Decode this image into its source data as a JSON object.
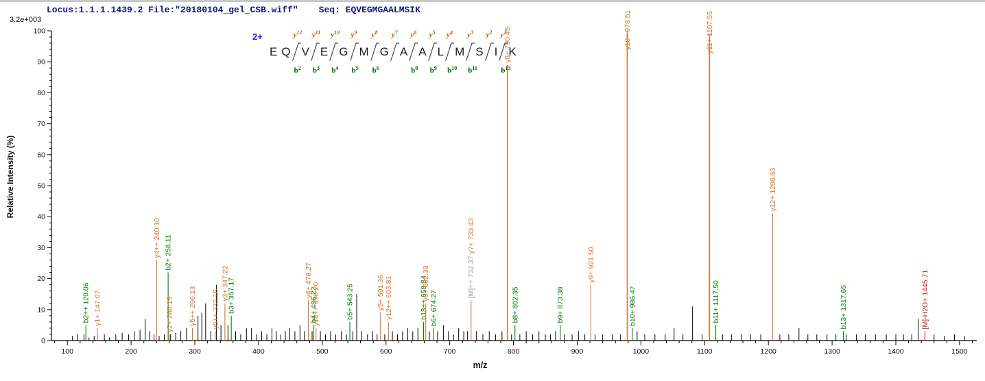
{
  "header": {
    "locus_file": "Locus:1.1.1.1439.2 File:\"20180104_gel_CSB.wiff\"",
    "seq": "Seq: EQVEGMGAALMSIK",
    "max_intensity": "3.2e+003"
  },
  "peptide": {
    "charge": "2+",
    "residues": [
      "E",
      "Q",
      "V",
      "E",
      "G",
      "M",
      "G",
      "A",
      "A",
      "L",
      "M",
      "S",
      "I",
      "K"
    ],
    "cleavages": [
      {
        "after": 1,
        "y": "y12",
        "b": "b2"
      },
      {
        "after": 2,
        "y": "y11",
        "b": "b3"
      },
      {
        "after": 3,
        "y": "y10",
        "b": "b4"
      },
      {
        "after": 4,
        "y": "y9",
        "b": "b5"
      },
      {
        "after": 5,
        "y": "y8",
        "b": "b6"
      },
      {
        "after": 6,
        "y": "y7",
        "b": null
      },
      {
        "after": 7,
        "y": "y6",
        "b": "b8"
      },
      {
        "after": 8,
        "y": "y5",
        "b": "b9"
      },
      {
        "after": 9,
        "y": "y4",
        "b": "b10"
      },
      {
        "after": 10,
        "y": "y3",
        "b": "b11"
      },
      {
        "after": 11,
        "y": "y2",
        "b": null
      },
      {
        "after": 12,
        "y": "y1",
        "b": "b13"
      }
    ]
  },
  "chart_data": {
    "type": "bar",
    "subtype": "ms2-fragment-spectrum",
    "xlabel": "m/z",
    "ylabel": "Relative Intensity (%)",
    "xlim": [
      75,
      1527
    ],
    "ylim": [
      0,
      100
    ],
    "x_ticks": [
      100,
      200,
      300,
      400,
      500,
      600,
      700,
      800,
      900,
      1000,
      1100,
      1200,
      1300,
      1400,
      1500
    ],
    "x_minor_step": 20,
    "y_ticks": [
      0,
      10,
      20,
      30,
      40,
      50,
      60,
      70,
      80,
      90,
      100
    ],
    "y_minor_step": 2,
    "colors": {
      "y_ion": "#d9732f",
      "b_ion": "#008000",
      "precursor": "#9a9a9a",
      "neutral_loss": "#c01818",
      "noise": "#000000",
      "axis": "#000000"
    },
    "annotated_peaks": [
      {
        "label": "b2++ 129.06",
        "mz": 129.06,
        "intensity": 5,
        "type": "b"
      },
      {
        "label": "y1+ 147.07",
        "mz": 147.07,
        "intensity": 4,
        "type": "y"
      },
      {
        "label": "y4++ 240.10",
        "mz": 240.1,
        "intensity": 26,
        "type": "y"
      },
      {
        "label": "b2+ 258.11",
        "mz": 258.11,
        "intensity": 22,
        "type": "b"
      },
      {
        "label": "y2+ 260.19",
        "mz": 260.19,
        "intensity": 2,
        "type": "y"
      },
      {
        "label": "y5++ 296.13",
        "mz": 296.13,
        "intensity": 4,
        "type": "y"
      },
      {
        "label": "y6++ 332.16",
        "mz": 332.16,
        "intensity": 3,
        "type": "y"
      },
      {
        "label": "y3+ 347.22",
        "mz": 347.22,
        "intensity": 12,
        "type": "y"
      },
      {
        "label": "b3+ 357.17",
        "mz": 357.17,
        "intensity": 8,
        "type": "b"
      },
      {
        "label": "y4+ 478.27",
        "mz": 478.27,
        "intensity": 13,
        "type": "y"
      },
      {
        "label": "b4+ 486.22",
        "mz": 486.22,
        "intensity": 5,
        "type": "b"
      },
      {
        "label": "y10++ 490.20",
        "mz": 490.2,
        "intensity": 4,
        "type": "y"
      },
      {
        "label": "b5+ 543.25",
        "mz": 543.25,
        "intensity": 6,
        "type": "b"
      },
      {
        "label": "y5+ 591.36",
        "mz": 591.36,
        "intensity": 9,
        "type": "y"
      },
      {
        "label": "y12++ 603.81",
        "mz": 603.81,
        "intensity": 6,
        "type": "y"
      },
      {
        "label": "b13++ 658.84",
        "mz": 658.84,
        "intensity": 6,
        "type": "b"
      },
      {
        "label": "y6+ 662.39",
        "mz": 662.39,
        "intensity": 12,
        "type": "y"
      },
      {
        "label": "b6+ 674.27",
        "mz": 674.27,
        "intensity": 4,
        "type": "b"
      },
      {
        "label": "y7+ 733.43",
        "prefix": "[M]++ 732.37",
        "prefix_type": "precursor",
        "mz": 733.43,
        "intensity": 13,
        "type": "y"
      },
      {
        "label": "y8+ 790.45",
        "mz": 790.45,
        "intensity": 89,
        "type": "y"
      },
      {
        "label": "b8+ 802.35",
        "mz": 802.35,
        "intensity": 5,
        "type": "b"
      },
      {
        "label": "b9+ 873.38",
        "mz": 873.38,
        "intensity": 5,
        "type": "b"
      },
      {
        "label": "y9+ 921.50",
        "mz": 921.5,
        "intensity": 18,
        "type": "y"
      },
      {
        "label": "y10+ 978.51",
        "mz": 978.51,
        "intensity": 100,
        "type": "y"
      },
      {
        "label": "b10+ 986.47",
        "mz": 986.47,
        "intensity": 4,
        "type": "b"
      },
      {
        "label": "y11+ 1107.55",
        "mz": 1107.55,
        "intensity": 99,
        "type": "y"
      },
      {
        "label": "b11+ 1117.50",
        "mz": 1117.5,
        "intensity": 5,
        "type": "b"
      },
      {
        "label": "y12+ 1206.63",
        "mz": 1206.63,
        "intensity": 41,
        "type": "y"
      },
      {
        "label": "b13+ 1317.65",
        "mz": 1317.65,
        "intensity": 3,
        "type": "b"
      },
      {
        "label": "[M]-H2O+ 1445.71",
        "mz": 1445.71,
        "intensity": 3,
        "type": "mh2o"
      }
    ],
    "noise_peaks": [
      [
        108,
        1.5
      ],
      [
        116,
        2
      ],
      [
        126,
        2
      ],
      [
        134,
        1
      ],
      [
        142,
        1.5
      ],
      [
        158,
        2
      ],
      [
        166,
        1
      ],
      [
        176,
        2
      ],
      [
        186,
        2.5
      ],
      [
        196,
        2
      ],
      [
        205,
        3
      ],
      [
        214,
        3.5
      ],
      [
        222,
        7
      ],
      [
        229,
        3
      ],
      [
        236,
        2
      ],
      [
        244,
        1.5
      ],
      [
        252,
        2
      ],
      [
        262,
        2
      ],
      [
        270,
        2.5
      ],
      [
        278,
        3
      ],
      [
        287,
        4
      ],
      [
        305,
        8
      ],
      [
        311,
        9
      ],
      [
        317,
        12
      ],
      [
        325,
        3
      ],
      [
        334,
        18
      ],
      [
        341,
        5
      ],
      [
        352,
        5
      ],
      [
        364,
        3
      ],
      [
        372,
        2
      ],
      [
        381,
        4
      ],
      [
        389,
        4
      ],
      [
        397,
        2
      ],
      [
        405,
        3
      ],
      [
        413,
        2
      ],
      [
        421,
        4
      ],
      [
        428,
        3
      ],
      [
        435,
        2
      ],
      [
        442,
        3
      ],
      [
        449,
        4
      ],
      [
        457,
        3
      ],
      [
        465,
        5
      ],
      [
        472,
        3
      ],
      [
        484,
        3
      ],
      [
        497,
        3
      ],
      [
        505,
        2
      ],
      [
        513,
        3
      ],
      [
        521,
        2
      ],
      [
        530,
        3
      ],
      [
        538,
        2
      ],
      [
        548,
        3
      ],
      [
        554,
        15
      ],
      [
        562,
        3
      ],
      [
        571,
        2
      ],
      [
        579,
        3
      ],
      [
        586,
        2
      ],
      [
        598,
        2
      ],
      [
        610,
        3
      ],
      [
        618,
        2
      ],
      [
        626,
        3
      ],
      [
        634,
        4
      ],
      [
        642,
        3
      ],
      [
        650,
        4
      ],
      [
        668,
        3
      ],
      [
        681,
        3
      ],
      [
        690,
        5
      ],
      [
        698,
        3
      ],
      [
        706,
        2
      ],
      [
        714,
        4
      ],
      [
        722,
        3
      ],
      [
        728,
        3
      ],
      [
        742,
        3
      ],
      [
        752,
        2
      ],
      [
        762,
        3
      ],
      [
        772,
        2
      ],
      [
        782,
        3
      ],
      [
        797,
        2
      ],
      [
        810,
        2
      ],
      [
        820,
        3
      ],
      [
        830,
        2
      ],
      [
        840,
        3
      ],
      [
        850,
        2
      ],
      [
        858,
        2
      ],
      [
        866,
        3
      ],
      [
        880,
        2
      ],
      [
        892,
        2
      ],
      [
        902,
        3
      ],
      [
        912,
        2
      ],
      [
        928,
        2
      ],
      [
        940,
        2
      ],
      [
        955,
        2
      ],
      [
        968,
        2
      ],
      [
        994,
        3
      ],
      [
        1006,
        2
      ],
      [
        1022,
        2
      ],
      [
        1038,
        2
      ],
      [
        1052,
        4
      ],
      [
        1066,
        2
      ],
      [
        1081,
        11
      ],
      [
        1096,
        2
      ],
      [
        1128,
        2
      ],
      [
        1142,
        2
      ],
      [
        1158,
        2
      ],
      [
        1172,
        2
      ],
      [
        1188,
        2
      ],
      [
        1218,
        2
      ],
      [
        1232,
        2
      ],
      [
        1248,
        4
      ],
      [
        1262,
        2
      ],
      [
        1276,
        2
      ],
      [
        1292,
        2
      ],
      [
        1306,
        2
      ],
      [
        1322,
        2
      ],
      [
        1338,
        2
      ],
      [
        1352,
        2
      ],
      [
        1368,
        2
      ],
      [
        1385,
        2
      ],
      [
        1400,
        2
      ],
      [
        1412,
        2
      ],
      [
        1425,
        2
      ],
      [
        1435,
        7
      ],
      [
        1460,
        2
      ],
      [
        1476,
        1.5
      ],
      [
        1492,
        2
      ],
      [
        1508,
        1.5
      ]
    ]
  }
}
